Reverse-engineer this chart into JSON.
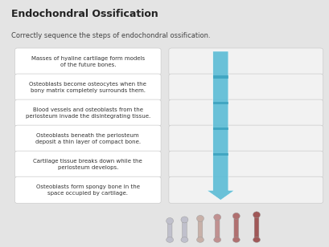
{
  "title": "Endochondral Ossification",
  "subtitle": "Correctly sequence the steps of endochondral ossification.",
  "bg_color": "#e4e4e4",
  "steps": [
    "Masses of hyaline cartilage form models\nof the future bones.",
    "Osteoblasts become osteocytes when the\nbony matrix completely surrounds them.",
    "Blood vessels and osteoblasts from the\nperiosteum invade the disintegrating tissue.",
    "Osteoblasts beneath the periosteum\ndeposit a thin layer of compact bone.",
    "Cartilage tissue breaks down while the\nperiosteum develops.",
    "Osteoblasts form spongy bone in the\nspace occupied by cartilage."
  ],
  "box_bg": "#ffffff",
  "box_edge": "#cccccc",
  "arrow_color": "#5bbcd6",
  "arrow_dark": "#2090b0",
  "right_box_bg": "#f2f2f2",
  "right_box_edge": "#cccccc",
  "title_fontsize": 9,
  "subtitle_fontsize": 6,
  "step_fontsize": 5,
  "title_color": "#222222",
  "subtitle_color": "#444444",
  "step_color": "#333333"
}
